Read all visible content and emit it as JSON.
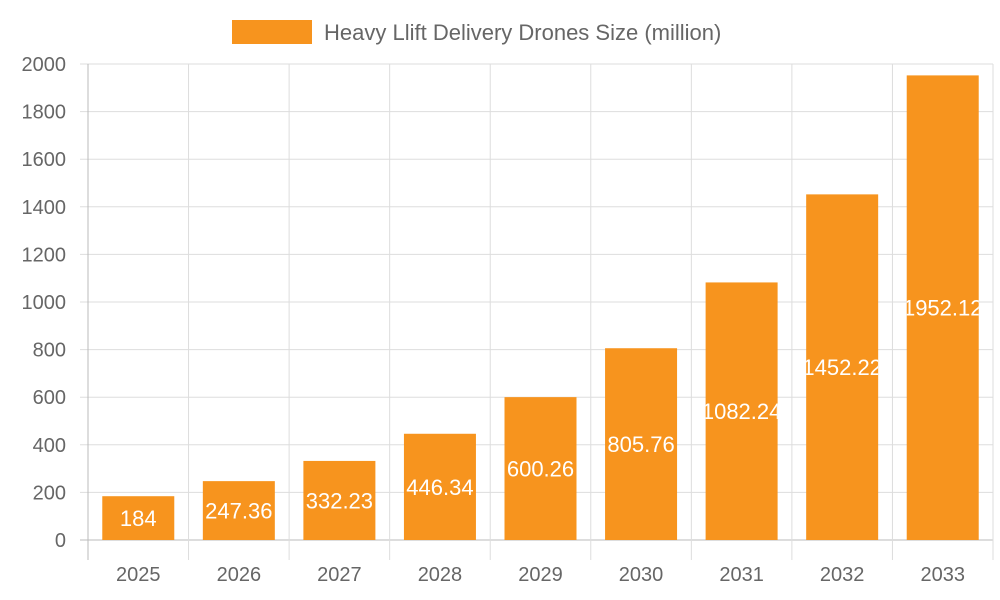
{
  "chart_data": {
    "type": "bar",
    "title": "",
    "legend": {
      "position": "top",
      "entries": [
        "Heavy Llift Delivery Drones Size (million)"
      ]
    },
    "categories": [
      "2025",
      "2026",
      "2027",
      "2028",
      "2029",
      "2030",
      "2031",
      "2032",
      "2033"
    ],
    "series": [
      {
        "name": "Heavy Llift Delivery Drones Size (million)",
        "values": [
          184,
          247.36,
          332.23,
          446.34,
          600.26,
          805.76,
          1082.24,
          1452.22,
          1952.12
        ],
        "color": "#F7941E"
      }
    ],
    "data_labels": [
      "184",
      "247.36",
      "332.23",
      "446.34",
      "600.26",
      "805.76",
      "1082.24",
      "1452.22",
      "1952.12"
    ],
    "xlabel": "",
    "ylabel": "",
    "ylim": [
      0,
      2000
    ],
    "yticks": [
      "0",
      "200",
      "400",
      "600",
      "800",
      "1000",
      "1200",
      "1400",
      "1600",
      "1800",
      "2000"
    ],
    "grid": true
  }
}
